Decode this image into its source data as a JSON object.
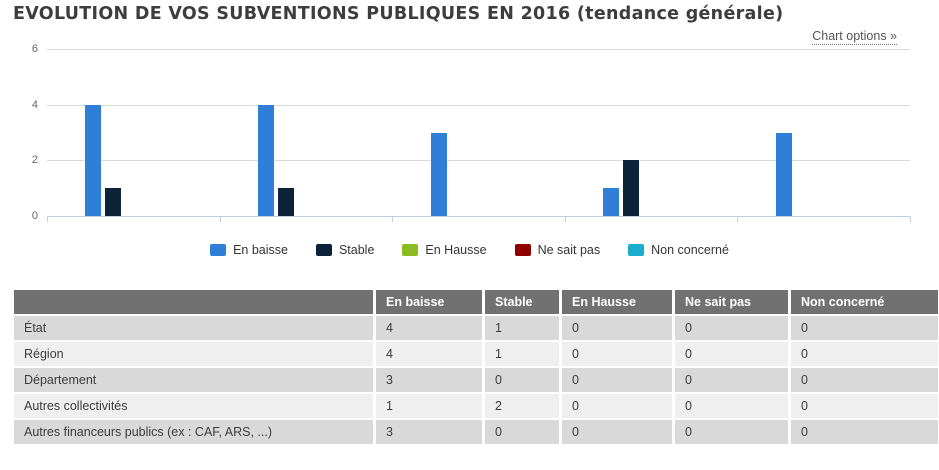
{
  "page": {
    "title": "EVOLUTION DE VOS SUBVENTIONS PUBLIQUES EN 2016 (tendance générale)",
    "chart_options_label": "Chart options »"
  },
  "chart_data": {
    "type": "bar",
    "title": "EVOLUTION DE VOS SUBVENTIONS PUBLIQUES EN 2016 (tendance générale)",
    "categories": [
      "État",
      "Région",
      "Département",
      "Autres collectivités",
      "Autres financeurs publics (ex : CAF, ARS, ...)"
    ],
    "series": [
      {
        "name": "En baisse",
        "color": "#2f7ed8",
        "values": [
          4,
          4,
          3,
          1,
          3
        ]
      },
      {
        "name": "Stable",
        "color": "#0d233a",
        "values": [
          1,
          1,
          0,
          2,
          0
        ]
      },
      {
        "name": "En Hausse",
        "color": "#8bbc21",
        "values": [
          0,
          0,
          0,
          0,
          0
        ]
      },
      {
        "name": "Ne sait pas",
        "color": "#910000",
        "values": [
          0,
          0,
          0,
          0,
          0
        ]
      },
      {
        "name": "Non concerné",
        "color": "#1aadce",
        "values": [
          0,
          0,
          0,
          0,
          0
        ]
      }
    ],
    "xlabel": "",
    "ylabel": "",
    "ylim": [
      0,
      6
    ],
    "yticks": [
      0,
      2,
      4,
      6
    ],
    "grid": true,
    "legend_position": "bottom"
  },
  "table": {
    "columns": [
      "",
      "En baisse",
      "Stable",
      "En Hausse",
      "Ne sait pas",
      "Non concerné"
    ],
    "rows": [
      {
        "label": "État",
        "values": [
          4,
          1,
          0,
          0,
          0
        ]
      },
      {
        "label": "Région",
        "values": [
          4,
          1,
          0,
          0,
          0
        ]
      },
      {
        "label": "Département",
        "values": [
          3,
          0,
          0,
          0,
          0
        ]
      },
      {
        "label": "Autres collectivités",
        "values": [
          1,
          2,
          0,
          0,
          0
        ]
      },
      {
        "label": "Autres financeurs publics (ex : CAF, ARS, ...)",
        "values": [
          3,
          0,
          0,
          0,
          0
        ]
      }
    ]
  }
}
